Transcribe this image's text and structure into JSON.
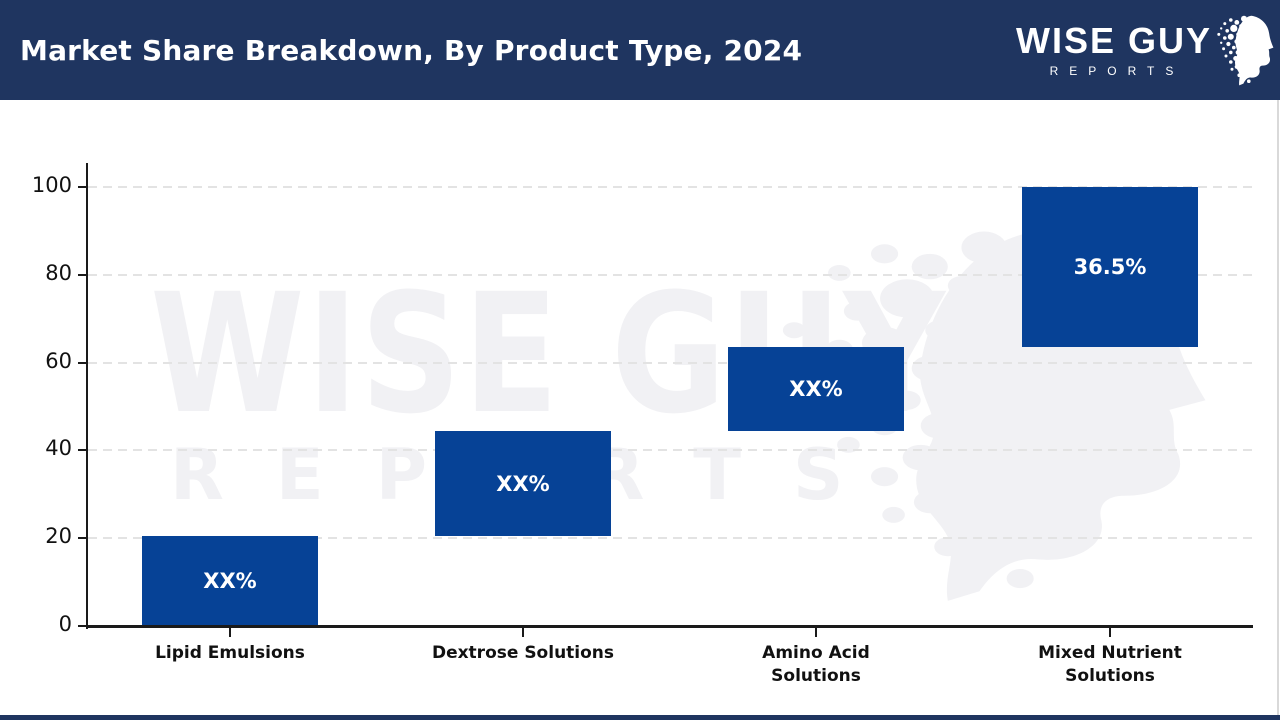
{
  "header": {
    "title": "Market Share Breakdown, By Product Type, 2024",
    "logo": {
      "line1": "WISE GUY",
      "line2": "REPORTS"
    }
  },
  "watermark": {
    "line1": "WISE GUY",
    "line2": "REPORTS"
  },
  "colors": {
    "header_navy": "#1f3560",
    "bar_blue": "#064296",
    "watermark_gray": "#f1f1f4",
    "gridline": "#e3e3e3",
    "axis": "#1a1a1a",
    "bar_label_text": "#ffffff",
    "tick_text": "#111111"
  },
  "chart_data": {
    "type": "bar",
    "variant": "waterfall",
    "title": "Market Share Breakdown, By Product Type, 2024",
    "xlabel": "",
    "ylabel": "",
    "categories": [
      "Lipid Emulsions",
      "Dextrose Solutions",
      "Amino Acid\nSolutions",
      "Mixed Nutrient\nSolutions"
    ],
    "segments": [
      {
        "start": 0,
        "end": 20.5
      },
      {
        "start": 20.5,
        "end": 44.4
      },
      {
        "start": 44.4,
        "end": 63.5
      },
      {
        "start": 63.5,
        "end": 100
      }
    ],
    "labels": [
      "XX%",
      "XX%",
      "XX%",
      "36.5%"
    ],
    "yticks": [
      0,
      20,
      40,
      60,
      80,
      100
    ],
    "ylim": [
      0,
      105
    ],
    "bar_color": "#064296",
    "grid": "dashed-horizontal",
    "legend": "none"
  }
}
